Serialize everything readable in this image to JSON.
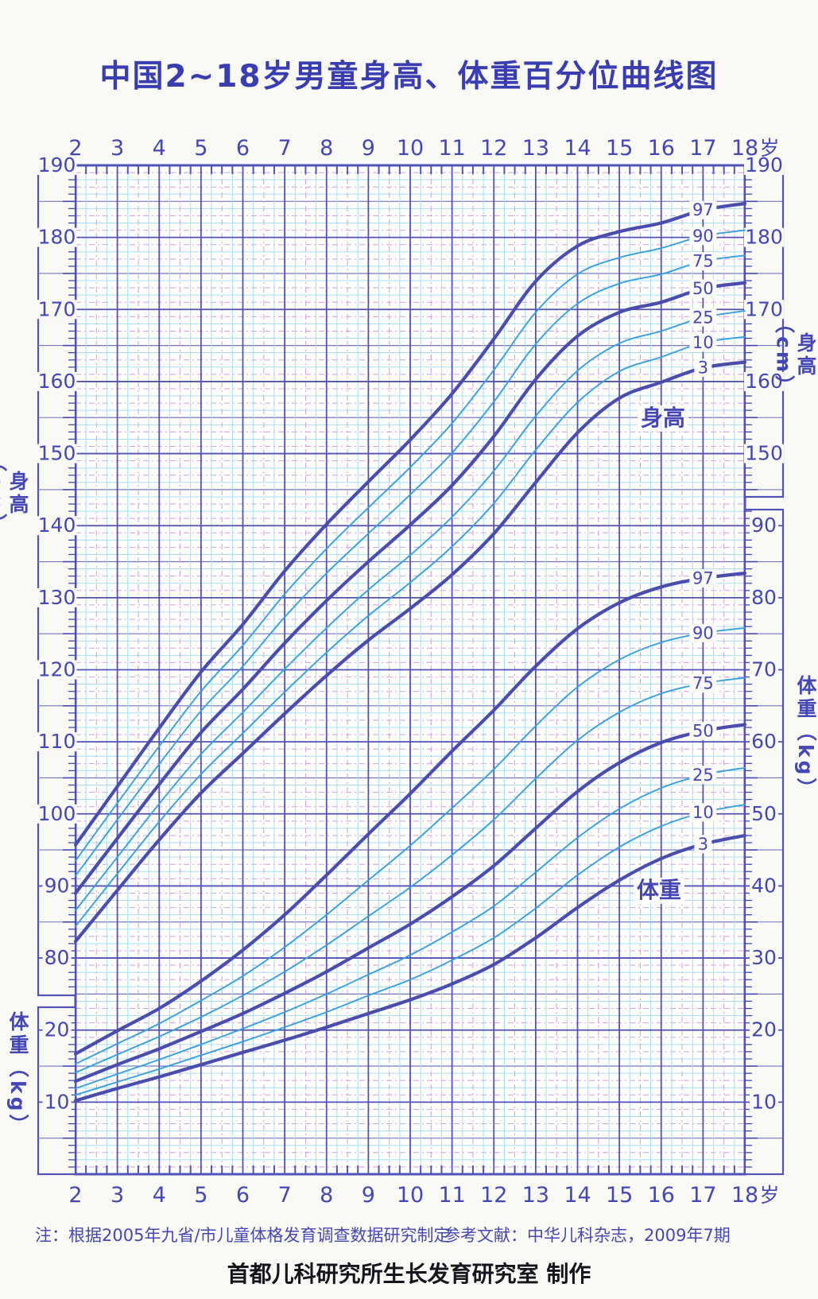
{
  "title": "中国2~18岁男童身高、体重百分位曲线图",
  "axis": {
    "age_unit": "岁",
    "ages": [
      2,
      3,
      4,
      5,
      6,
      7,
      8,
      9,
      10,
      11,
      12,
      13,
      14,
      15,
      16,
      17,
      18
    ],
    "height_axis_title": "身高（cm）",
    "weight_axis_title": "体重（kg）",
    "left_height_tick_labels": [
      190,
      180,
      170,
      160,
      150,
      140,
      130,
      120,
      110,
      100,
      90,
      80
    ],
    "left_weight_tick_labels": [
      20,
      10
    ],
    "right_height_tick_labels": [
      190,
      180,
      170,
      160,
      150
    ],
    "right_weight_tick_labels": [
      90,
      80,
      70,
      60,
      50,
      40,
      30,
      20,
      10
    ]
  },
  "curve_labels": {
    "height_group_label": "身高",
    "weight_group_label": "体重",
    "percentile_labels": [
      97,
      90,
      75,
      50,
      25,
      10,
      3
    ]
  },
  "notes": {
    "note": "注：根据2005年九省/市儿童体格发育调查数据研究制定",
    "reference": "参考文献：中华儿科杂志，2009年7期"
  },
  "footer": "首都儿科研究所生长发育研究室 制作",
  "colors": {
    "ink": "#4548b4",
    "title_ink": "#393db0",
    "footer_ink": "#15151d",
    "major_grid": "#5153b6",
    "mid_grid": "#6f77c4",
    "minor_cyan": "#a8ddf3",
    "minor_violet": "#d09fdf",
    "curve_thick": "#4b4dac",
    "curve_thin": "#38a0de",
    "paper": "#f9f9f5",
    "plot_bg": "#fefefc"
  },
  "chart_data": [
    {
      "type": "line",
      "name": "height-percentile-curves",
      "group_label": "身高",
      "unit": "cm",
      "xlabel": "岁",
      "x": [
        2,
        3,
        4,
        5,
        6,
        7,
        8,
        9,
        10,
        11,
        12,
        13,
        14,
        15,
        16,
        17,
        18
      ],
      "ylim_labeled": [
        80,
        190
      ],
      "emphasized_percentiles": [
        3,
        50,
        97
      ],
      "series": [
        {
          "name": "P3",
          "percentile": 3,
          "values": [
            82.3,
            89.4,
            96.4,
            102.9,
            108.4,
            113.9,
            119.2,
            124.1,
            128.5,
            133.2,
            138.9,
            146.0,
            152.9,
            157.7,
            159.9,
            161.9,
            162.7
          ]
        },
        {
          "name": "P10",
          "percentile": 10,
          "values": [
            84.4,
            91.7,
            98.9,
            105.5,
            111.2,
            116.9,
            122.4,
            127.5,
            132.1,
            137.1,
            143.1,
            150.5,
            157.1,
            161.4,
            163.4,
            165.4,
            166.2
          ]
        },
        {
          "name": "P25",
          "percentile": 25,
          "values": [
            86.6,
            94.0,
            101.4,
            108.3,
            114.1,
            120.1,
            125.8,
            131.1,
            135.9,
            141.2,
            147.6,
            155.2,
            161.5,
            165.3,
            167.0,
            168.9,
            169.8
          ]
        },
        {
          "name": "P50",
          "percentile": 50,
          "values": [
            89.0,
            96.6,
            104.1,
            111.3,
            117.3,
            123.7,
            129.6,
            135.0,
            140.1,
            145.6,
            152.4,
            160.3,
            166.3,
            169.6,
            171.0,
            172.9,
            173.7
          ]
        },
        {
          "name": "P75",
          "percentile": 75,
          "values": [
            91.4,
            99.2,
            106.9,
            114.3,
            120.5,
            127.3,
            133.4,
            138.9,
            144.3,
            150.1,
            157.2,
            165.2,
            170.8,
            173.6,
            174.9,
            176.7,
            177.5
          ]
        },
        {
          "name": "P90",
          "percentile": 90,
          "values": [
            93.5,
            101.5,
            109.4,
            117.0,
            123.4,
            130.5,
            136.8,
            142.5,
            148.1,
            154.2,
            161.6,
            169.6,
            174.9,
            177.2,
            178.5,
            180.2,
            181.0
          ]
        },
        {
          "name": "P97",
          "percentile": 97,
          "values": [
            95.7,
            103.8,
            111.9,
            119.7,
            126.3,
            133.7,
            140.2,
            146.1,
            151.9,
            158.3,
            165.9,
            173.9,
            178.8,
            180.8,
            182.0,
            183.8,
            184.7
          ]
        }
      ]
    },
    {
      "type": "line",
      "name": "weight-percentile-curves",
      "group_label": "体重",
      "unit": "kg",
      "xlabel": "岁",
      "x": [
        2,
        3,
        4,
        5,
        6,
        7,
        8,
        9,
        10,
        11,
        12,
        13,
        14,
        15,
        16,
        17,
        18
      ],
      "ylim_labeled": [
        10,
        90
      ],
      "emphasized_percentiles": [
        3,
        50,
        97
      ],
      "series": [
        {
          "name": "P3",
          "percentile": 3,
          "values": [
            10.2,
            11.9,
            13.5,
            15.2,
            16.9,
            18.6,
            20.4,
            22.3,
            24.2,
            26.4,
            29.1,
            32.8,
            37.0,
            40.8,
            43.8,
            45.8,
            47.0
          ]
        },
        {
          "name": "P10",
          "percentile": 10,
          "values": [
            11.0,
            12.8,
            14.6,
            16.5,
            18.4,
            20.4,
            22.5,
            24.8,
            27.0,
            29.7,
            32.8,
            36.9,
            41.5,
            45.4,
            48.3,
            50.2,
            51.3
          ]
        },
        {
          "name": "P25",
          "percentile": 25,
          "values": [
            11.9,
            13.9,
            15.9,
            18.0,
            20.2,
            22.5,
            25.0,
            27.7,
            30.4,
            33.6,
            37.2,
            41.9,
            46.7,
            50.7,
            53.6,
            55.4,
            56.4
          ]
        },
        {
          "name": "P50",
          "percentile": 50,
          "values": [
            12.9,
            15.2,
            17.4,
            19.8,
            22.3,
            25.1,
            28.1,
            31.4,
            34.7,
            38.5,
            42.8,
            48.0,
            53.1,
            57.1,
            59.9,
            61.5,
            62.4
          ]
        },
        {
          "name": "P75",
          "percentile": 75,
          "values": [
            14.1,
            16.6,
            19.1,
            21.8,
            24.8,
            28.1,
            31.8,
            35.8,
            39.8,
            44.3,
            49.2,
            54.9,
            60.2,
            64.1,
            66.7,
            68.1,
            68.9
          ]
        },
        {
          "name": "P90",
          "percentile": 90,
          "values": [
            15.3,
            18.1,
            20.9,
            24.1,
            27.5,
            31.5,
            36.0,
            40.8,
            45.6,
            50.8,
            56.2,
            62.2,
            67.6,
            71.4,
            73.8,
            75.1,
            75.8
          ]
        },
        {
          "name": "P97",
          "percentile": 97,
          "values": [
            16.7,
            19.9,
            23.0,
            26.8,
            31.1,
            36.0,
            41.5,
            47.2,
            52.8,
            58.7,
            64.4,
            70.5,
            75.7,
            79.3,
            81.5,
            82.7,
            83.4
          ]
        }
      ]
    }
  ]
}
